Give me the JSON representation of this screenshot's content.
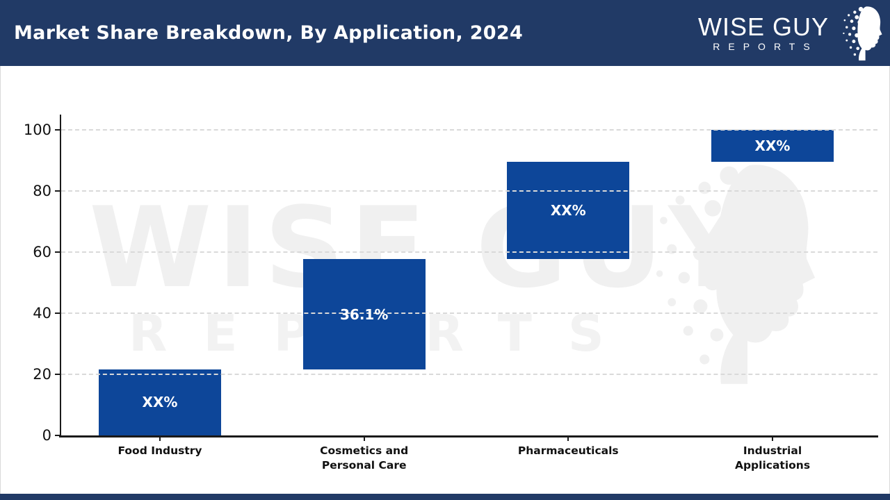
{
  "header": {
    "title": "Market Share Breakdown, By Application, 2024",
    "bg_color": "#213a66",
    "logo": {
      "name": "WISE GUY",
      "tagline": "REPORTS"
    }
  },
  "watermark": {
    "line1": "WISE GUY",
    "line2": "REPORTS"
  },
  "footer": {
    "bg_color": "#213a66"
  },
  "chart_data": {
    "type": "bar",
    "subtype": "floating-segment-waterfall",
    "title": "Market Share Breakdown, By Application, 2024",
    "categories": [
      "Food Industry",
      "Cosmetics and\nPersonal Care",
      "Pharmaceuticals",
      "Industrial\nApplications"
    ],
    "segments": [
      {
        "name": "Food Industry",
        "start": 0,
        "end": 21.6,
        "label": "XX%"
      },
      {
        "name": "Cosmetics and Personal Care",
        "start": 21.6,
        "end": 57.7,
        "label": "36.1%",
        "value": 36.1
      },
      {
        "name": "Pharmaceuticals",
        "start": 57.7,
        "end": 89.5,
        "label": "XX%"
      },
      {
        "name": "Industrial Applications",
        "start": 89.5,
        "end": 100,
        "label": "XX%"
      }
    ],
    "ylim": [
      0,
      100
    ],
    "yticks": [
      0,
      20,
      40,
      60,
      80,
      100
    ],
    "grid": "horizontal-dashed",
    "legend": "none",
    "bar_color": "#0d4699",
    "bar_label_color": "#ffffff",
    "axis_color": "#1a1a1a",
    "gridline_color": "#d9d9d9"
  }
}
